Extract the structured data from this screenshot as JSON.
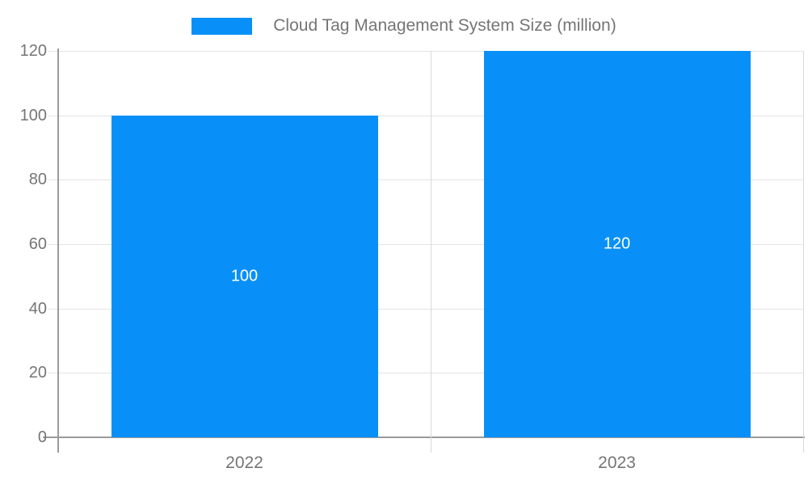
{
  "chart_data": {
    "type": "bar",
    "title": "Cloud Tag Management System Size (million)",
    "categories": [
      "2022",
      "2023"
    ],
    "values": [
      100,
      120
    ],
    "value_labels": [
      "100",
      "120"
    ],
    "xlabel": "",
    "ylabel": "",
    "ylim": [
      0,
      120
    ],
    "ytick_step": 20,
    "ytick_labels": [
      "0",
      "20",
      "40",
      "60",
      "80",
      "100",
      "120"
    ],
    "grid": "horizontal",
    "legend_position": "top-center",
    "data_label_position": "inside-center",
    "colors": {
      "bar": "#0890f8",
      "value_label_text": "#ffffff",
      "axis_line": "#9a9a9a",
      "gridline": "#e4e4e4",
      "tick_text": "#757575",
      "legend_text": "#757575",
      "background": "#ffffff"
    }
  }
}
